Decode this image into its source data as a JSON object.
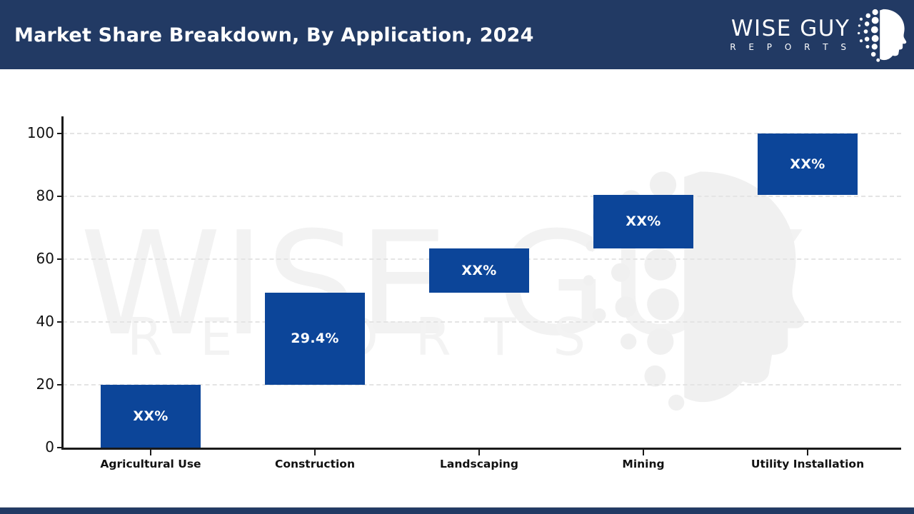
{
  "header": {
    "title": "Market Share Breakdown, By Application, 2024",
    "logo": {
      "line1": "WISE GUY",
      "line2": "R E P O R T S"
    }
  },
  "watermark": {
    "line1": "WISE GUY",
    "line2": "REPORTS"
  },
  "chart_data": {
    "type": "bar",
    "subtype": "floating-waterfall",
    "title": "Market Share Breakdown, By Application, 2024",
    "categories": [
      "Agricultural Use",
      "Construction",
      "Landscaping",
      "Mining",
      "Utility Installation"
    ],
    "bars": [
      {
        "category": "Agricultural Use",
        "start": 0,
        "end": 20,
        "label": "XX%"
      },
      {
        "category": "Construction",
        "start": 20,
        "end": 49.4,
        "label": "29.4%"
      },
      {
        "category": "Landscaping",
        "start": 49.4,
        "end": 63.5,
        "label": "XX%"
      },
      {
        "category": "Mining",
        "start": 63.5,
        "end": 80.5,
        "label": "XX%"
      },
      {
        "category": "Utility Installation",
        "start": 80.5,
        "end": 100,
        "label": "XX%"
      }
    ],
    "xlabel": "",
    "ylabel": "",
    "ylim": [
      0,
      100
    ],
    "yticks": [
      0,
      20,
      40,
      60,
      80,
      100
    ],
    "grid": "horizontal-dashed",
    "legend": "none",
    "colors": {
      "bar": "#0c4599",
      "header_bg": "#223a64",
      "grid": "#e4e4e4",
      "axis": "#1a1a1a",
      "bar_label": "#ffffff",
      "tick_label": "#111111",
      "watermark": "#f2f2f2"
    }
  }
}
